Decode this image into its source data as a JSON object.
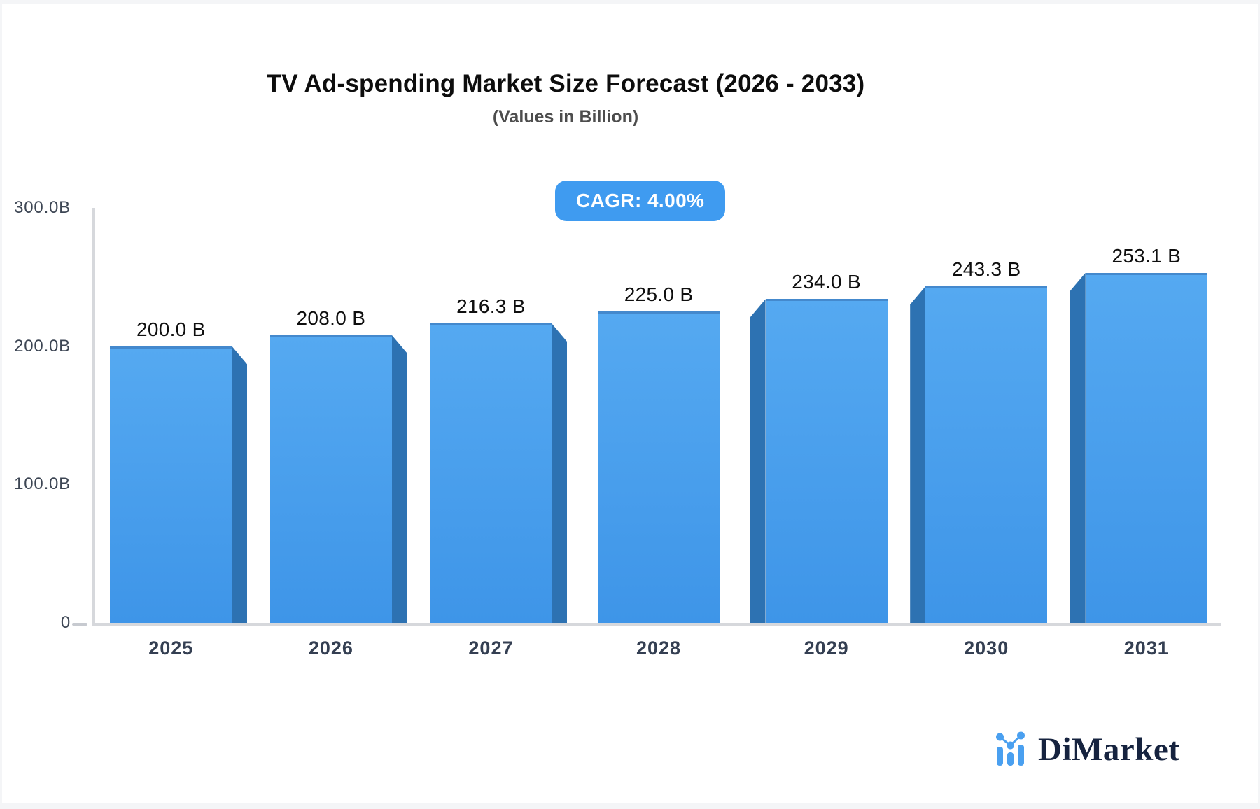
{
  "header": {
    "title": "TV Ad-spending Market Size Forecast (2026 - 2033)",
    "subtitle": "(Values in Billion)",
    "cagr_badge": "CAGR: 4.00%"
  },
  "chart_data": {
    "type": "bar",
    "categories": [
      "2025",
      "2026",
      "2027",
      "2028",
      "2029",
      "2030",
      "2031"
    ],
    "values": [
      200.0,
      208.0,
      216.3,
      225.0,
      234.0,
      243.3,
      253.1
    ],
    "value_labels": [
      "200.0 B",
      "208.0 B",
      "216.3 B",
      "225.0 B",
      "234.0 B",
      "243.3 B",
      "253.1 B"
    ],
    "title": "TV Ad-spending Market Size Forecast (2026 - 2033)",
    "subtitle": "(Values in Billion)",
    "annotation": "CAGR: 4.00%",
    "xlabel": "",
    "ylabel": "",
    "ylim": [
      0,
      300
    ],
    "y_ticks": [
      300,
      200,
      100,
      0
    ],
    "y_tick_labels": [
      "300.0B",
      "200.0B",
      "100.0B",
      "0"
    ],
    "grid": false,
    "legend": false,
    "style": "3d-beveled-bars, perspective toward center bar"
  },
  "branding": {
    "name": "DiMarket",
    "icon": "bar-line-chart-icon"
  },
  "colors": {
    "bar_top": "#55a9f1",
    "bar_bottom": "#3e95e8",
    "bar_edge": "#4489cd",
    "bar_side_dark": "#2d72b2",
    "badge_bg": "#3f9bf0",
    "badge_text": "#ffffff",
    "axis_line": "#d6d8dc",
    "tick_text": "#3d4654",
    "value_text": "#0f0f0f",
    "logo_navy": "#16233f",
    "logo_blue": "#4aa0f0"
  }
}
